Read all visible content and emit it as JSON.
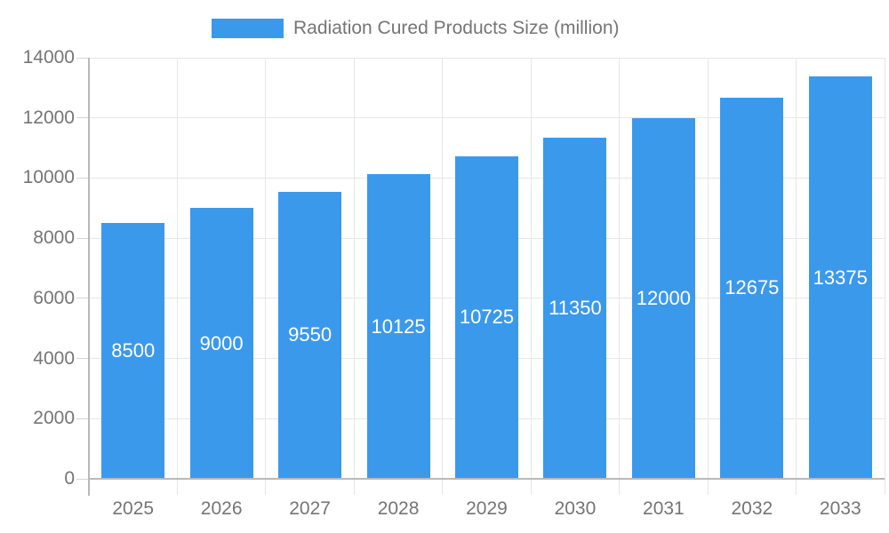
{
  "chart_data": {
    "type": "bar",
    "title": "",
    "xlabel": "",
    "ylabel": "",
    "legend": {
      "position": "top",
      "entries": [
        {
          "label": "Radiation Cured Products Size (million)",
          "color": "#3B99EC"
        }
      ]
    },
    "categories": [
      "2025",
      "2026",
      "2027",
      "2028",
      "2029",
      "2030",
      "2031",
      "2032",
      "2033"
    ],
    "series": [
      {
        "name": "Radiation Cured Products Size (million)",
        "values": [
          8500,
          9000,
          9550,
          10125,
          10725,
          11350,
          12000,
          12675,
          13375
        ],
        "color": "#3B99EC"
      }
    ],
    "value_labels_shown": true,
    "value_labels": [
      "8500",
      "9000",
      "9550",
      "10125",
      "10725",
      "11350",
      "12000",
      "12675",
      "13375"
    ],
    "ylim": [
      0,
      14000
    ],
    "ytick_step": 2000,
    "yticks": [
      0,
      2000,
      4000,
      6000,
      8000,
      10000,
      12000,
      14000
    ],
    "grid": true,
    "colors": {
      "bar": "#3B99EC",
      "bar_value_text": "#FFFFFF",
      "axis_text": "#757575",
      "axis_line": "#B9B9B9",
      "gridline": "#E7E7E7",
      "tick": "#D4D4D4",
      "background": "#FFFFFF"
    }
  }
}
